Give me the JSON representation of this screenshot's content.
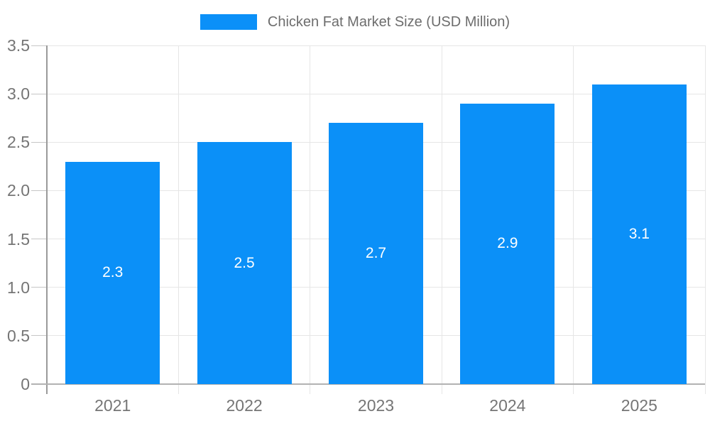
{
  "legend": {
    "label": "Chicken Fat Market Size (USD Million)"
  },
  "chart_data": {
    "type": "bar",
    "title": "Chicken Fat Market Size (USD Million)",
    "categories": [
      "2021",
      "2022",
      "2023",
      "2024",
      "2025"
    ],
    "values": [
      2.3,
      2.5,
      2.7,
      2.9,
      3.1
    ],
    "bar_labels": [
      "2.3",
      "2.5",
      "2.7",
      "2.9",
      "3.1"
    ],
    "xlabel": "",
    "ylabel": "",
    "ylim": [
      0,
      3.5
    ],
    "ytick_values": [
      0,
      0.5,
      1,
      1.5,
      2,
      2.5,
      3,
      3.5
    ],
    "ytick_labels": [
      "0",
      "0.5",
      "1.0",
      "1.5",
      "2.0",
      "2.5",
      "3.0",
      "3.5"
    ],
    "grid": true,
    "legend_position": "top",
    "colors": {
      "series": "#0b90f8",
      "grid": "#e6e6e6",
      "axis": "#9a9a9a",
      "baseline": "#b2b2b2",
      "tick": "#c6c6c6",
      "axis_label_text": "#757575",
      "bar_label_text": "#ffffff",
      "legend_text": "#6d6d6d"
    }
  }
}
